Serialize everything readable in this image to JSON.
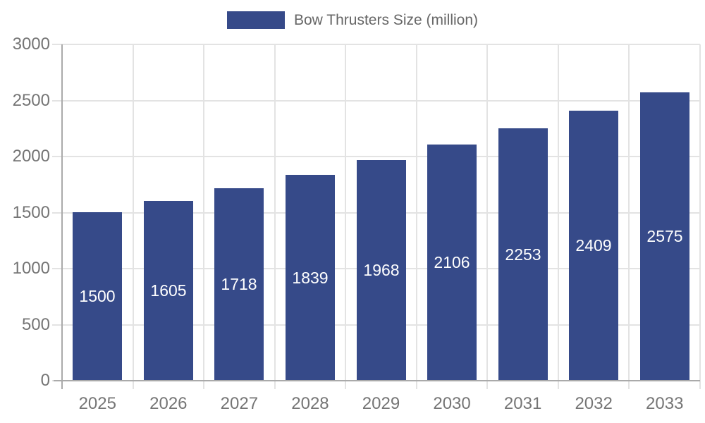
{
  "legend": {
    "label": "Bow Thrusters Size (million)"
  },
  "chart_data": {
    "type": "bar",
    "title": "Bow Thrusters Size (million)",
    "categories": [
      "2025",
      "2026",
      "2027",
      "2028",
      "2029",
      "2030",
      "2031",
      "2032",
      "2033"
    ],
    "series": [
      {
        "name": "Bow Thrusters Size (million)",
        "values": [
          1500,
          1605,
          1718,
          1839,
          1968,
          2106,
          2253,
          2409,
          2575
        ]
      }
    ],
    "values": [
      1500,
      1605,
      1718,
      1839,
      1968,
      2106,
      2253,
      2409,
      2575
    ],
    "xlabel": "",
    "ylabel": "",
    "ylim": [
      0,
      3000
    ],
    "yticks": [
      0,
      500,
      1000,
      1500,
      2000,
      2500,
      3000
    ],
    "grid": true,
    "legend_position": "top-center",
    "bar_labels_inside": true,
    "colors": {
      "bar": "#364a89",
      "axis": "#aaaaaa",
      "grid": "#e3e3e3",
      "axis_text": "#757575",
      "legend_text": "#666666",
      "bar_label": "#ffffff"
    }
  }
}
